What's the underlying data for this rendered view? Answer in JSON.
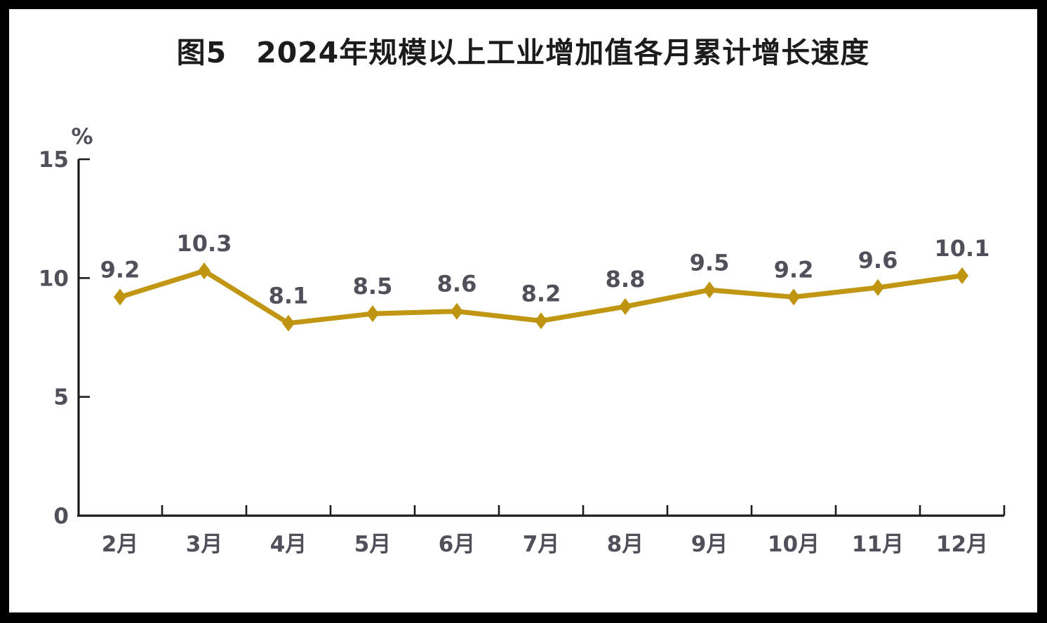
{
  "chart_data": {
    "type": "line",
    "title": "图5　2024年规模以上工业增加值各月累计增长速度",
    "unit_label": "%",
    "categories": [
      "2月",
      "3月",
      "4月",
      "5月",
      "6月",
      "7月",
      "8月",
      "9月",
      "10月",
      "11月",
      "12月"
    ],
    "values": [
      9.2,
      10.3,
      8.1,
      8.5,
      8.6,
      8.2,
      8.8,
      9.5,
      9.2,
      9.6,
      10.1
    ],
    "data_labels": [
      "9.2",
      "10.3",
      "8.1",
      "8.5",
      "8.6",
      "8.2",
      "8.8",
      "9.5",
      "9.2",
      "9.6",
      "10.1"
    ],
    "ylim": [
      0,
      15
    ],
    "yticks": [
      0,
      5,
      10,
      15
    ],
    "ytick_labels": [
      "0",
      "5",
      "10",
      "15"
    ],
    "grid": false,
    "legend": "none",
    "marker": "diamond",
    "colors": {
      "line": "#C09612",
      "marker": "#BE9410",
      "text": "#50505A",
      "axis": "#1c1c1c",
      "title": "#1c1c1c",
      "frame": "#000000",
      "background": "#ffffff"
    }
  }
}
